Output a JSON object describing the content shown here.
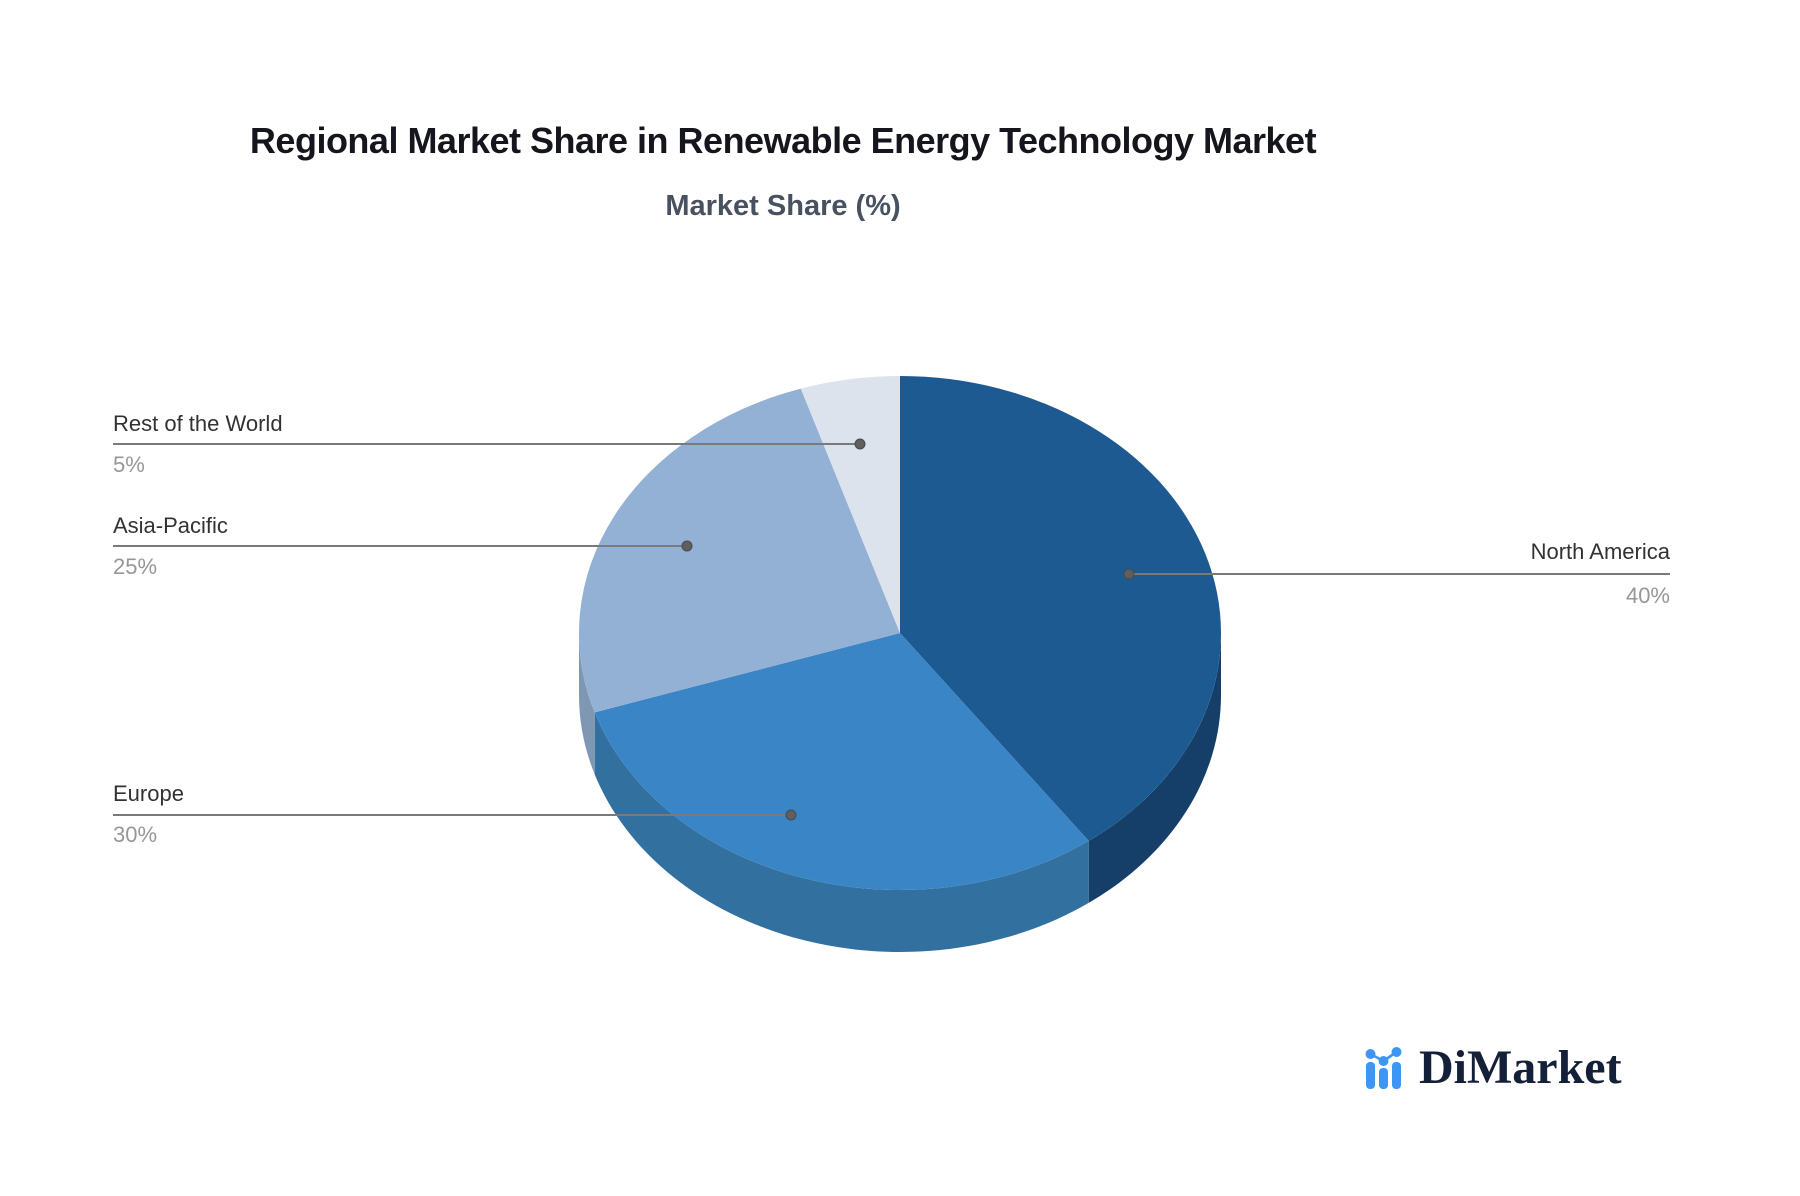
{
  "chart_data": {
    "type": "pie",
    "is_3d": true,
    "title": "Regional Market Share in Renewable Energy Technology Market",
    "subtitle": "Market Share (%)",
    "unit": "%",
    "start_angle_deg": 90,
    "direction": "clockwise",
    "legend_position": "leader-labels",
    "slices": [
      {
        "label": "North America",
        "value": 40,
        "display": "40%",
        "color": "#1D5A91",
        "side_color": "#153F68"
      },
      {
        "label": "Europe",
        "value": 30,
        "display": "30%",
        "color": "#3A85C6",
        "side_color": "#32719F"
      },
      {
        "label": "Asia-Pacific",
        "value": 25,
        "display": "25%",
        "color": "#93B1D4",
        "side_color": "#7E98B4"
      },
      {
        "label": "Rest of the World",
        "value": 5,
        "display": "5%",
        "color": "#DDE3ED",
        "side_color": "#C2CBD9"
      }
    ],
    "label_color": "#323232",
    "pct_color": "#979797",
    "leader_color": "#7a7a7a",
    "leader_dot_color": "#5f5f5f"
  },
  "logo": {
    "name": "DiMarket",
    "icon": "bar-line-chart-icon",
    "icon_color": "#3E96F4",
    "text_color": "#141f38"
  }
}
